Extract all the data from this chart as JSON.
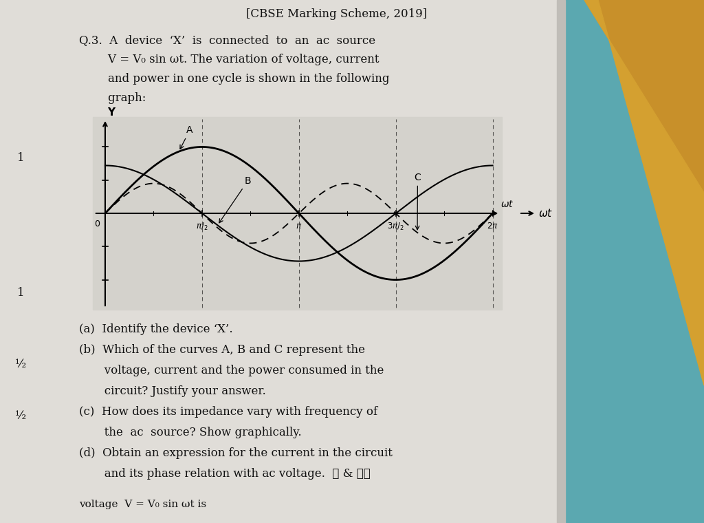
{
  "title": "[CBSE Marking Scheme, 2019]",
  "bg_page": "#e8e4de",
  "bg_right_book": "#d4a050",
  "bg_main": "#dddbd6",
  "graph_bg": "#d8d6d0",
  "curve_voltage_amp": 1.0,
  "curve_current_amp": 0.72,
  "curve_power_amp": 0.45,
  "curve_voltage_lw": 2.0,
  "curve_current_lw": 1.5,
  "curve_power_lw": 1.3,
  "q_line1": "Q.3.  A  device  ‘X’  is  connected  to  an  ac  source",
  "q_line2": "        V = V₀ sin ωt. The variation of voltage, current",
  "q_line3": "        and power in one cycle is shown in the following",
  "q_line4": "        graph:",
  "mark_1a": "1",
  "mark_1b": "1",
  "mark_half_c": "½",
  "mark_half_d": "½",
  "part_a": "(a)  Identify the device ‘X’.",
  "part_b1": "(b)  Which of the curves A, B and C represent the",
  "part_b2": "       voltage, current and the power consumed in the",
  "part_b3": "       circuit? Justify your answer.",
  "part_c1": "(c)  How does its impedance vary with frequency of",
  "part_c2": "       the  ac  source? Show graphically.",
  "part_d1": "(d)  Obtain an expression for the current in the circuit",
  "part_d2": "       and its phase relation with ac voltage.  Ⓤ & Ⓐⓩ",
  "bottom": "voltage  V = V₀ sin ωt is"
}
